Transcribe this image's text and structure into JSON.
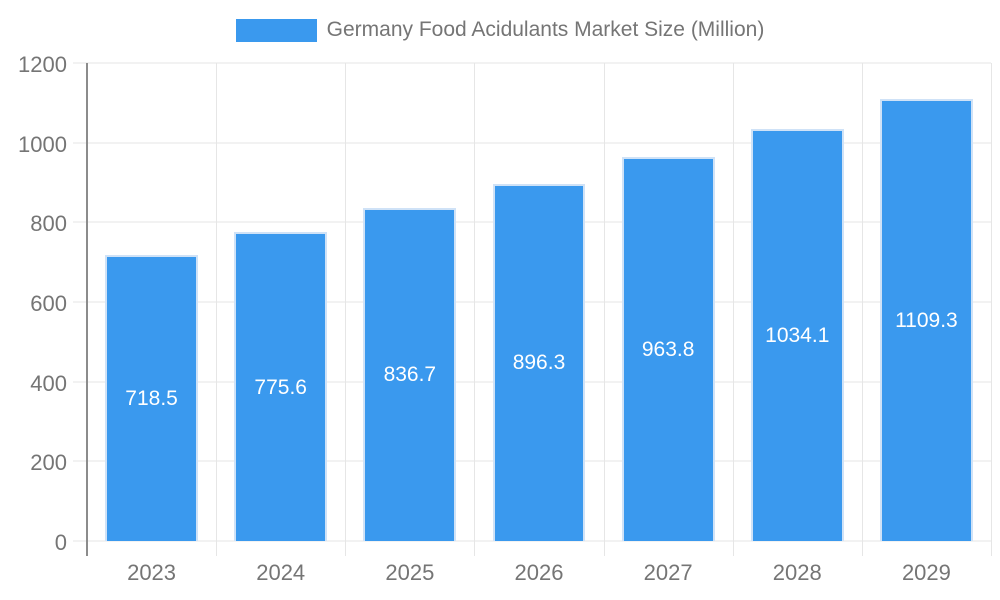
{
  "legend": {
    "label": "Germany Food Acidulants Market Size (Million)"
  },
  "chart_data": {
    "type": "bar",
    "title": "Germany Food Acidulants Market Size (Million)",
    "categories": [
      "2023",
      "2024",
      "2025",
      "2026",
      "2027",
      "2028",
      "2029"
    ],
    "values": [
      718.5,
      775.6,
      836.7,
      896.3,
      963.8,
      1034.1,
      1109.3
    ],
    "xlabel": "",
    "ylabel": "",
    "ylim": [
      0,
      1200
    ],
    "yticks": [
      0,
      200,
      400,
      600,
      800,
      1000,
      1200
    ],
    "grid": true,
    "legend_position": "top-center",
    "bar_color": "#3a99ee",
    "bar_border_color": "#cfe2f7",
    "value_label_color": "#ffffff",
    "value_label_position": "inside-middle",
    "axis_text_color": "#757575",
    "gridline_color": "#e6e6e6",
    "axis_line_color": "#8c8c8c",
    "bar_width_fraction": 0.72
  }
}
